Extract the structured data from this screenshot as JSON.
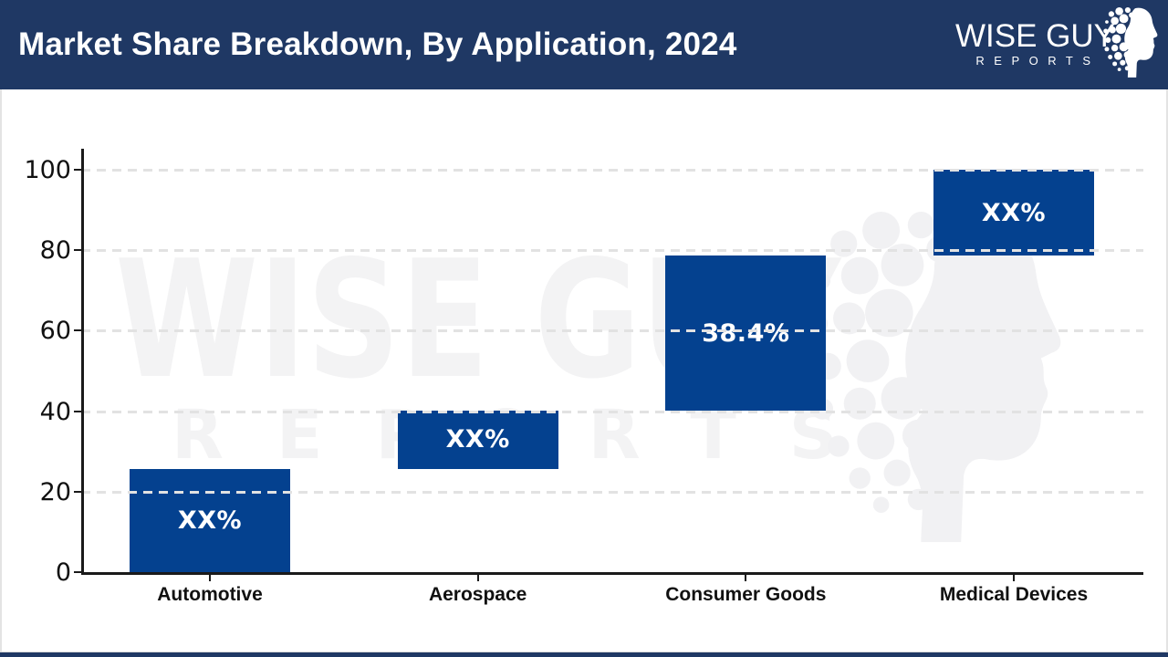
{
  "header": {
    "title": "Market Share Breakdown, By Application, 2024"
  },
  "logo": {
    "brand": "WISE GUY",
    "sub": "REPORTS"
  },
  "watermark": {
    "brand": "WISE GUY",
    "sub": "REPORTS"
  },
  "chart_data": {
    "type": "bar",
    "subtype": "waterfall",
    "title": "Market Share Breakdown, By Application, 2024",
    "categories": [
      "Automotive",
      "Aerospace",
      "Consumer Goods",
      "Medical Devices"
    ],
    "segments": [
      {
        "category": "Automotive",
        "start": 0,
        "end": 25.6,
        "value": 25.6,
        "label": "XX%"
      },
      {
        "category": "Aerospace",
        "start": 25.6,
        "end": 40.2,
        "value": 14.6,
        "label": "XX%"
      },
      {
        "category": "Consumer Goods",
        "start": 40.2,
        "end": 78.6,
        "value": 38.4,
        "label": "38.4%"
      },
      {
        "category": "Medical Devices",
        "start": 78.6,
        "end": 100.0,
        "value": 21.4,
        "label": "XX%"
      }
    ],
    "y_ticks": [
      0,
      20,
      40,
      60,
      80,
      100
    ],
    "ylim": [
      0,
      105
    ],
    "xlabel": "",
    "ylabel": "",
    "grid": "horizontal-dashed-over-bars",
    "legend": "none",
    "bar_color": "#04418F",
    "bar_label_color": "#ffffff",
    "axis_color": "#1a1a1a",
    "gridline_color": "#e2e2e2"
  },
  "colors": {
    "header_bg": "#1F3864",
    "footer_bg": "#1F3864",
    "page_bg": "#ffffff",
    "watermark": "#f3f3f4"
  }
}
